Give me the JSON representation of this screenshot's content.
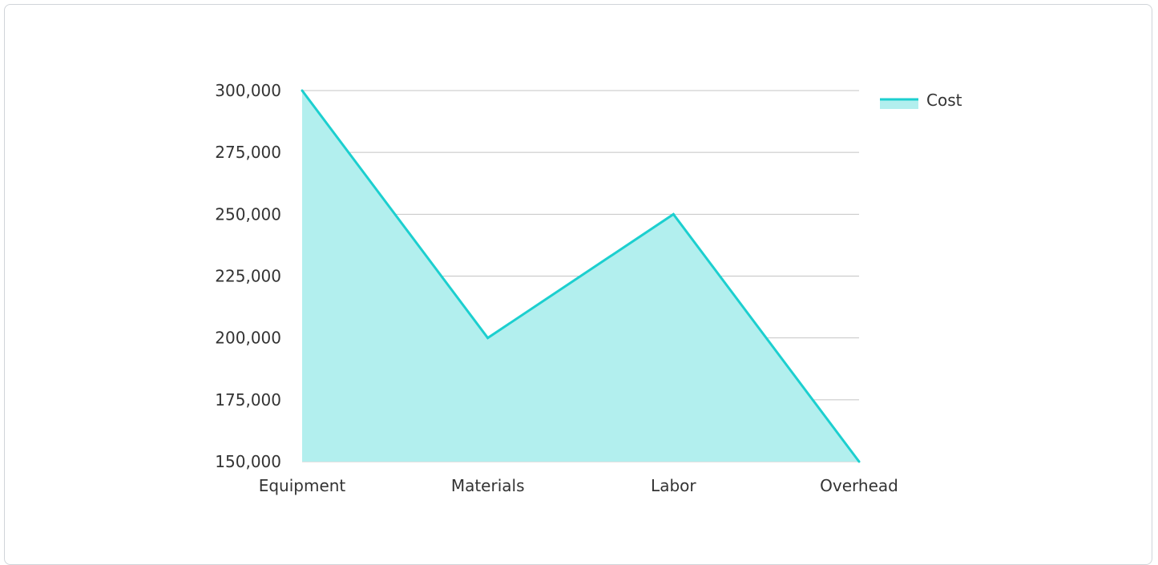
{
  "chart_data": {
    "type": "area",
    "title": "",
    "xlabel": "",
    "ylabel": "",
    "categories": [
      "Equipment",
      "Materials",
      "Labor",
      "Overhead"
    ],
    "series": [
      {
        "name": "Cost",
        "values": [
          300000,
          200000,
          250000,
          150000
        ]
      }
    ],
    "ylim": [
      150000,
      300000
    ],
    "yticks": [
      150000,
      175000,
      200000,
      225000,
      250000,
      275000,
      300000
    ],
    "ytick_labels": [
      "150,000",
      "175,000",
      "200,000",
      "225,000",
      "250,000",
      "275,000",
      "300,000"
    ],
    "grid": true,
    "legend": "top-right"
  },
  "colors": {
    "line": "#1ccfcf",
    "fill": "#b2efee",
    "grid": "#c4c4c4",
    "text": "#333333"
  }
}
